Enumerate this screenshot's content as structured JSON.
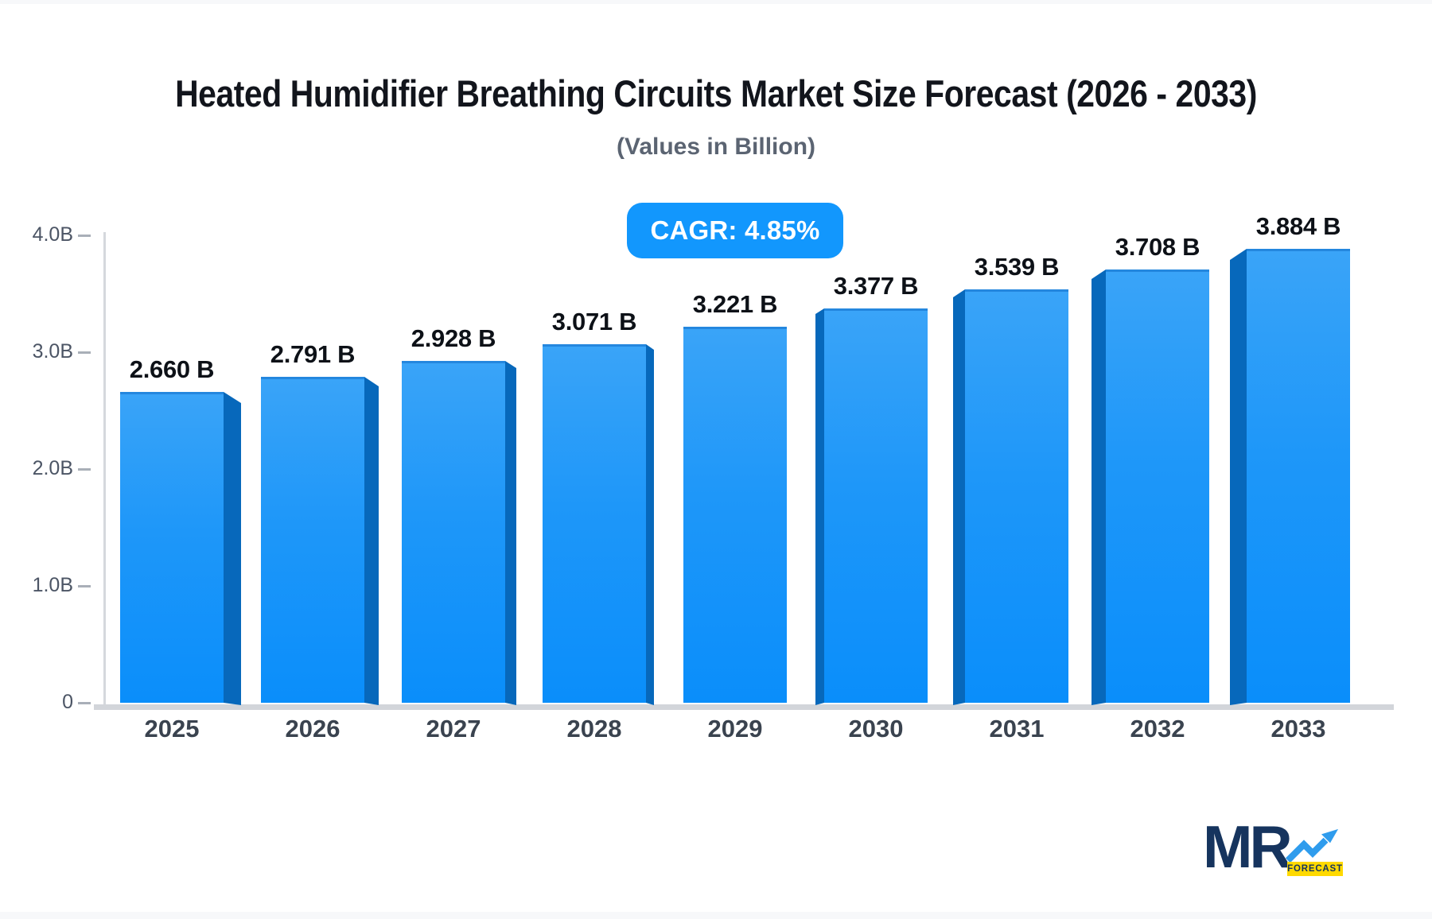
{
  "chart_data": {
    "type": "bar",
    "title": "Heated Humidifier Breathing Circuits Market Size Forecast (2026 - 2033)",
    "subtitle": "(Values in Billion)",
    "categories": [
      "2025",
      "2026",
      "2027",
      "2028",
      "2029",
      "2030",
      "2031",
      "2032",
      "2033"
    ],
    "values": [
      2.66,
      2.791,
      2.928,
      3.071,
      3.221,
      3.377,
      3.539,
      3.708,
      3.884
    ],
    "value_labels": [
      "2.660 B",
      "2.791 B",
      "2.928 B",
      "3.071 B",
      "3.221 B",
      "3.377 B",
      "3.539 B",
      "3.708 B",
      "3.884 B"
    ],
    "xlabel": "",
    "ylabel": "",
    "ylim": [
      0,
      4.0
    ],
    "yticks": [
      {
        "label": "4.0B",
        "value": 4.0
      },
      {
        "label": "3.0B",
        "value": 3.0
      },
      {
        "label": "2.0B",
        "value": 2.0
      },
      {
        "label": "1.0B",
        "value": 1.0
      },
      {
        "label": "0",
        "value": 0.0
      }
    ],
    "grid": false,
    "legend_position": "none",
    "annotations": {
      "cagr_badge": "CAGR: 4.85%"
    },
    "colors": {
      "bar_front_top": "#3aa4f8",
      "bar_front_bottom": "#0a8efa",
      "bar_side": "#0768bb",
      "badge_background": "#1297fd",
      "axis_line": "#d5d8dd",
      "tick_label": "#4c5565",
      "value_label": "#0d1117",
      "title_text": "#12151c",
      "subtitle_text": "#5b6472"
    }
  },
  "logo": {
    "brand": "MR",
    "tagline": "FORECAST",
    "colors": {
      "navy": "#16345e",
      "arrow_blue": "#2f9ced",
      "tagline_yellow": "#ffd900"
    }
  }
}
